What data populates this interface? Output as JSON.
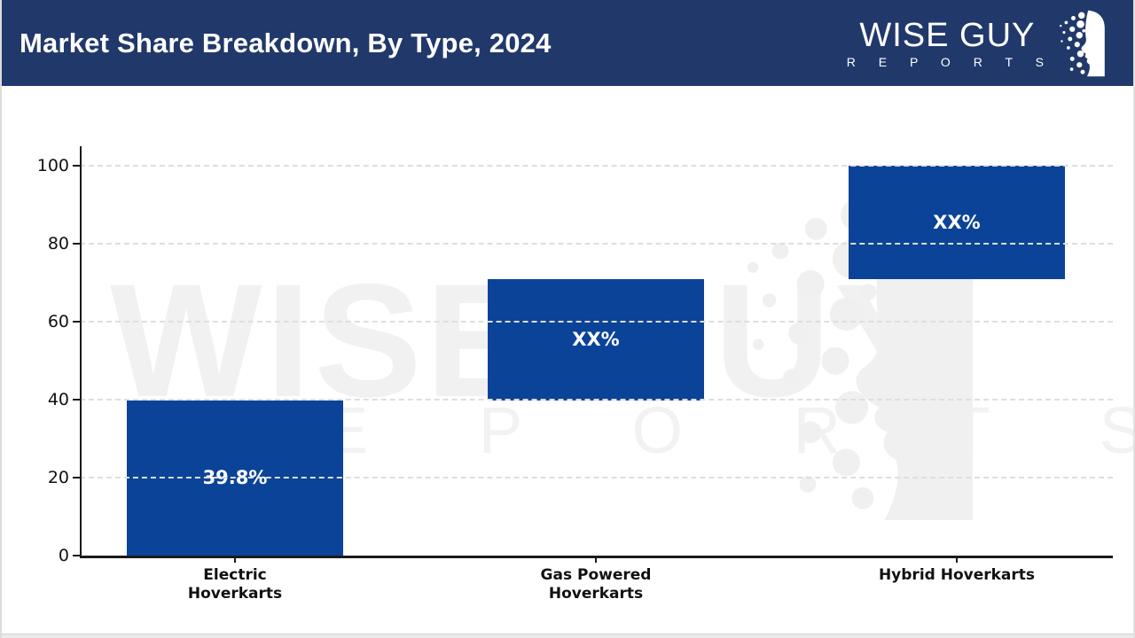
{
  "header": {
    "title": "Market Share Breakdown, By Type, 2024",
    "bg_color": "#21386B",
    "logo": {
      "name": "WISE GUY",
      "sub": "REPORTS",
      "sub_display": "R E P O R T S"
    }
  },
  "watermark": {
    "line1": "WISE GUY",
    "line2": "R E P O R T S"
  },
  "chart_data": {
    "type": "bar",
    "variant": "waterfall",
    "title": "Market Share Breakdown, By Type, 2024",
    "categories": [
      "Electric Hoverkarts",
      "Gas Powered Hoverkarts",
      "Hybrid Hoverkarts"
    ],
    "category_lines": [
      [
        "Electric",
        "Hoverkarts"
      ],
      [
        "Gas Powered",
        "Hoverkarts"
      ],
      [
        "Hybrid Hoverkarts"
      ]
    ],
    "bars": [
      {
        "category": "Electric Hoverkarts",
        "from": 0,
        "to": 39.8,
        "label": "39.8%"
      },
      {
        "category": "Gas Powered Hoverkarts",
        "from": 39.8,
        "to": 71,
        "label": "XX%"
      },
      {
        "category": "Hybrid Hoverkarts",
        "from": 71,
        "to": 100,
        "label": "XX%"
      }
    ],
    "yticks": [
      0,
      20,
      40,
      60,
      80,
      100
    ],
    "ylim": [
      0,
      105
    ],
    "xlabel": "",
    "ylabel": "",
    "grid": {
      "horizontal": true,
      "style": "dashed"
    },
    "legend": null,
    "bar_color": "#0B4398",
    "bar_label_color": "#FFFFFF",
    "axis_color": "#1A1A1A",
    "gridline_color": "#DEDEDE"
  }
}
